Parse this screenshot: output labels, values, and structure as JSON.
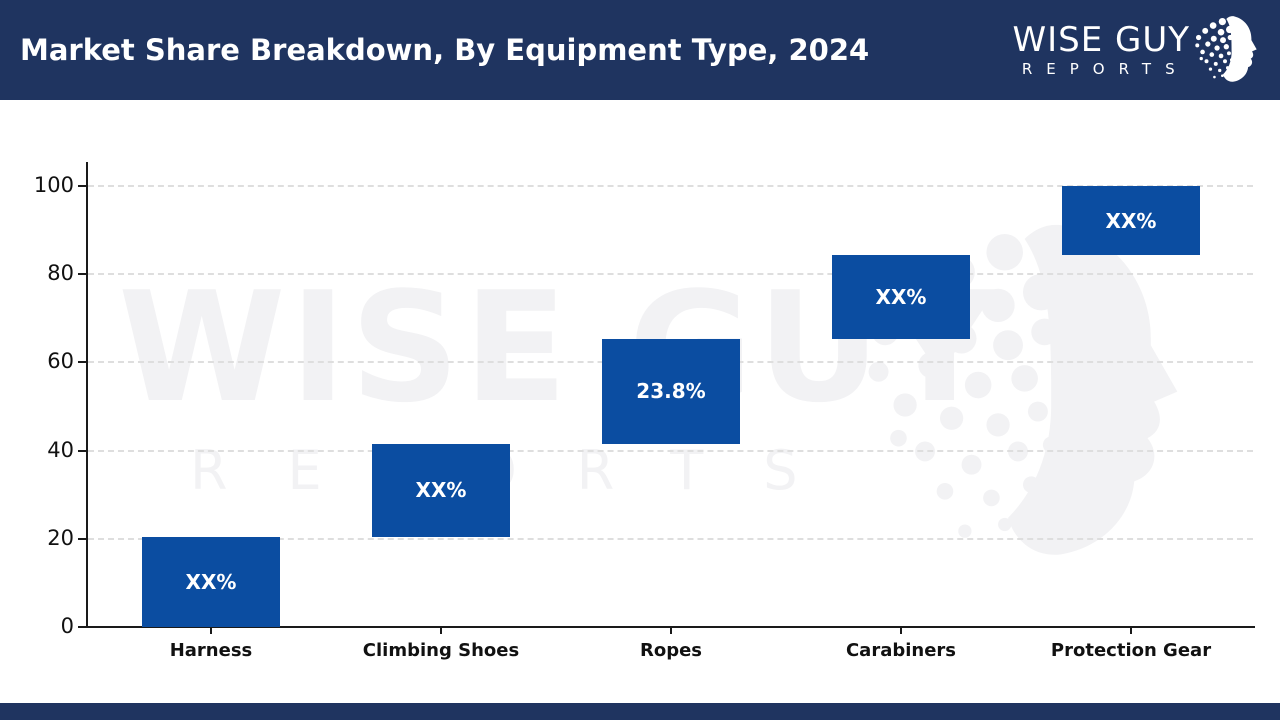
{
  "header": {
    "title": "Market Share Breakdown, By Equipment Type, 2024",
    "logo": {
      "line1": "WISE GUY",
      "line2": "REPORTS"
    }
  },
  "watermark": {
    "line1": "WISE GUY",
    "line2": "REPORTS"
  },
  "chart_data": {
    "type": "bar",
    "subtype": "waterfall",
    "title": "Market Share Breakdown, By Equipment Type, 2024",
    "xlabel": "",
    "ylabel": "",
    "categories": [
      "Harness",
      "Climbing Shoes",
      "Ropes",
      "Carabiners",
      "Protection Gear"
    ],
    "bars": [
      {
        "category": "Harness",
        "start": 0,
        "end": 20.3,
        "label": "XX%"
      },
      {
        "category": "Climbing Shoes",
        "start": 20.3,
        "end": 41.6,
        "label": "XX%"
      },
      {
        "category": "Ropes",
        "start": 41.6,
        "end": 65.4,
        "label": "23.8%"
      },
      {
        "category": "Carabiners",
        "start": 65.4,
        "end": 84.3,
        "label": "XX%"
      },
      {
        "category": "Protection Gear",
        "start": 84.3,
        "end": 100,
        "label": "XX%"
      }
    ],
    "yticks": [
      0,
      20,
      40,
      60,
      80,
      100
    ],
    "ylim": [
      0,
      105
    ],
    "grid": "horizontal dashed",
    "legend": "none",
    "bar_color": "#0b4da1",
    "bar_label_color": "#ffffff"
  },
  "colors": {
    "header_navy": "#1f3460",
    "footer_navy": "#1f3460",
    "bar_blue": "#0b4da1",
    "watermark_gray": "#f2f2f4",
    "gridline_gray": "#dedede",
    "axis_black": "#1a1a1a"
  }
}
